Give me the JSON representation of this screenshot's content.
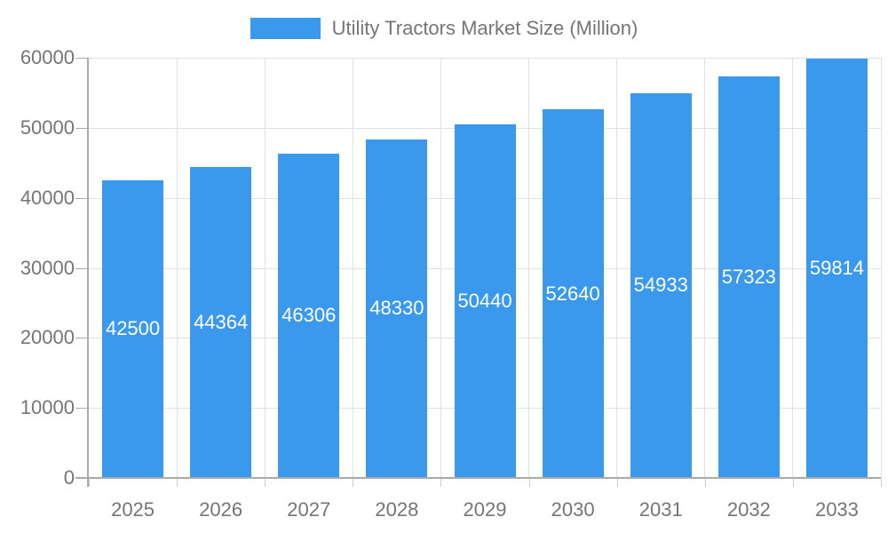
{
  "legend": {
    "label": "Utility Tractors Market Size (Million)"
  },
  "chart_data": {
    "type": "bar",
    "title": "Utility Tractors Market Size (Million)",
    "series_name": "Utility Tractors Market Size (Million)",
    "categories": [
      "2025",
      "2026",
      "2027",
      "2028",
      "2029",
      "2030",
      "2031",
      "2032",
      "2033"
    ],
    "values": [
      42500,
      44364,
      46306,
      48330,
      50440,
      52640,
      54933,
      57323,
      59814
    ],
    "value_labels": [
      "42500",
      "44364",
      "46306",
      "48330",
      "50440",
      "52640",
      "54933",
      "57323",
      "59814"
    ],
    "xlabel": "",
    "ylabel": "",
    "ylim": [
      0,
      60000
    ],
    "yticks": [
      0,
      10000,
      20000,
      30000,
      40000,
      50000,
      60000
    ],
    "ytick_labels": [
      "0",
      "10000",
      "20000",
      "30000",
      "40000",
      "50000",
      "60000"
    ],
    "grid": true,
    "legend_position": "top-center",
    "value_label_position": "inside-center",
    "colors": {
      "bar": "#3a99ec",
      "bar_value_label": "#ffffff",
      "axis_text": "#757575",
      "gridline": "#e0e0e0",
      "axis_line": "#aaaaaa",
      "background": "#ffffff"
    }
  }
}
